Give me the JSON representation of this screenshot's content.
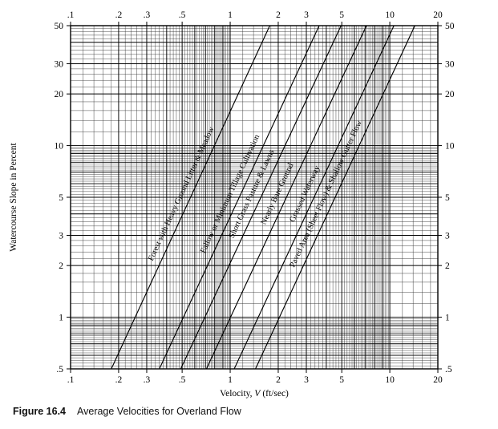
{
  "figure": {
    "caption_label": "Figure 16.4",
    "caption_text": "Average Velocities for Overland Flow"
  },
  "chart_data": {
    "type": "line",
    "title": "",
    "ylabel": "Watercourse Slope in Percent",
    "xlabel_parts": {
      "pre": "Velocity, ",
      "var": "V",
      "post": " (ft/sec)"
    },
    "x_axis": {
      "scale": "log",
      "min": 0.1,
      "max": 20,
      "tick_values": [
        0.1,
        0.2,
        0.3,
        0.5,
        1,
        2,
        3,
        5,
        10,
        20
      ],
      "tick_labels": [
        ".1",
        ".2",
        ".3",
        ".5",
        "1",
        "2",
        "3",
        "5",
        "10",
        "20"
      ]
    },
    "y_axis": {
      "scale": "log",
      "min": 0.5,
      "max": 50,
      "tick_values": [
        50,
        30,
        20,
        10,
        5,
        3,
        2,
        1,
        0.5
      ],
      "tick_labels": [
        "50",
        "30",
        "20",
        "10",
        "5",
        "3",
        "2",
        "1",
        ".5"
      ]
    },
    "grid": "full log-log graph paper, minor and major rules",
    "legend_position": "labels rotated along each line",
    "relationship": "V = k * sqrt(slope_fraction)",
    "series": [
      {
        "name": "Forest with Heavy Ground Litter & Meadow",
        "k": 2.5,
        "points": [
          {
            "velocity": 0.18,
            "slope_pct": 0.5
          },
          {
            "velocity": 1.77,
            "slope_pct": 50
          }
        ]
      },
      {
        "name": "Fallow or Minimum Tillage Cultivation",
        "k": 5.1,
        "points": [
          {
            "velocity": 0.36,
            "slope_pct": 0.5
          },
          {
            "velocity": 3.61,
            "slope_pct": 50
          }
        ]
      },
      {
        "name": "Short Grass Pasture & Lawns",
        "k": 7.0,
        "points": [
          {
            "velocity": 0.49,
            "slope_pct": 0.5
          },
          {
            "velocity": 4.95,
            "slope_pct": 50
          }
        ]
      },
      {
        "name": "Nearly Bare Ground",
        "k": 10.1,
        "points": [
          {
            "velocity": 0.71,
            "slope_pct": 0.5
          },
          {
            "velocity": 7.14,
            "slope_pct": 50
          }
        ]
      },
      {
        "name": "Grassed Waterway",
        "k": 15.0,
        "points": [
          {
            "velocity": 1.06,
            "slope_pct": 0.5
          },
          {
            "velocity": 10.61,
            "slope_pct": 50
          }
        ]
      },
      {
        "name": "Paved Area (Sheet Flow) & Shallow Gutter Flow",
        "k": 20.3,
        "points": [
          {
            "velocity": 1.44,
            "slope_pct": 0.5
          },
          {
            "velocity": 14.35,
            "slope_pct": 50
          }
        ]
      }
    ]
  }
}
